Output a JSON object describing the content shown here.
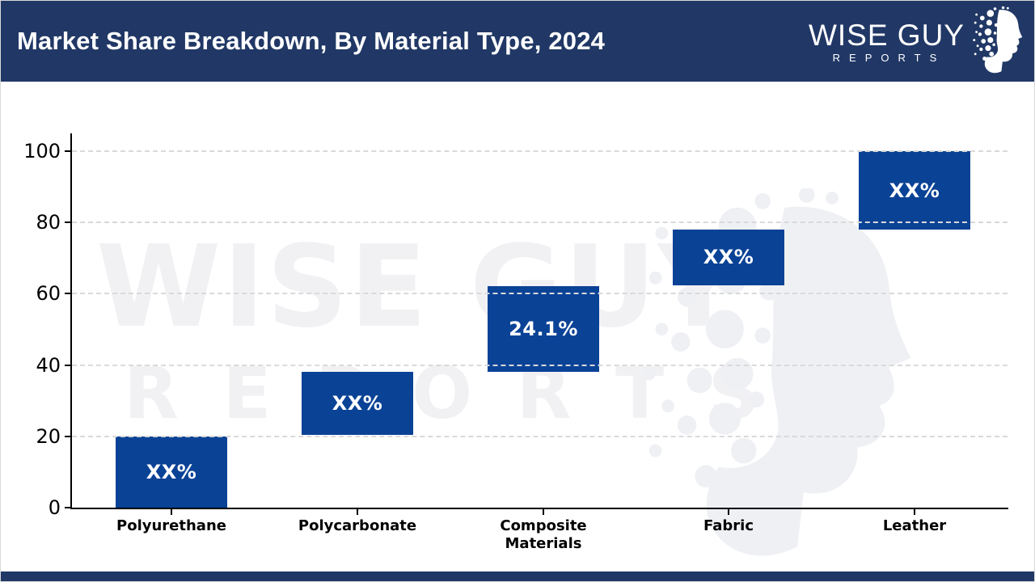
{
  "header": {
    "title": "Market Share Breakdown, By Material Type, 2024",
    "logo": {
      "wordmark": "WISE GUY",
      "subtext": "REPORTS"
    }
  },
  "watermark": {
    "wordmark": "WISE GUY",
    "subtext": "R E P O R T S"
  },
  "colors": {
    "page_bg": "#ffffff",
    "header_bg": "#213866",
    "footer_bg": "#213866",
    "bar_fill": "#0a4296",
    "bar_label": "#ffffff",
    "grid_line": "#d9d9d9",
    "axis_line": "#000000",
    "tick_label": "#000000",
    "watermark_text": "#f1f1f4",
    "watermark_head": "#eef0f3"
  },
  "chart_data": {
    "type": "bar",
    "subtype": "waterfall",
    "title": "Market Share Breakdown, By Material Type, 2024",
    "categories": [
      "Polyurethane",
      "Polycarbonate",
      "Composite Materials",
      "Fabric",
      "Leather"
    ],
    "segments": [
      {
        "category": "Polyurethane",
        "start": 0,
        "end": 20,
        "label": "XX%"
      },
      {
        "category": "Polycarbonate",
        "start": 20.5,
        "end": 38,
        "label": "XX%"
      },
      {
        "category": "Composite Materials",
        "start": 38,
        "end": 62.1,
        "label": "24.1%"
      },
      {
        "category": "Fabric",
        "start": 62.4,
        "end": 78,
        "label": "XX%"
      },
      {
        "category": "Leather",
        "start": 78,
        "end": 100,
        "label": "XX%"
      }
    ],
    "xlabel": "",
    "ylabel": "",
    "ylim": [
      0,
      100
    ],
    "yticks": [
      0,
      20,
      40,
      60,
      80,
      100
    ],
    "grid": "horizontal-dashed",
    "legend": "none"
  }
}
